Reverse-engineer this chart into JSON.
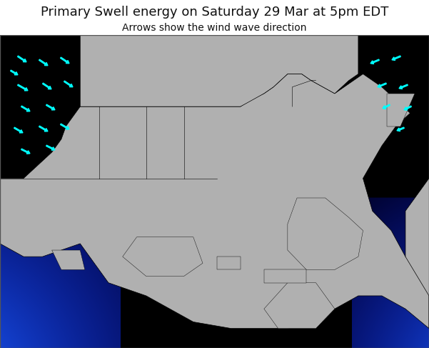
{
  "title": "Primary Swell energy on Saturday 29 Mar at 5pm EDT",
  "subtitle": "Arrows show the wind wave direction",
  "title_fontsize": 13,
  "subtitle_fontsize": 10,
  "bg_color": "#ffffff",
  "map_ocean_color": "#000000",
  "map_land_color": "#aaaaaa",
  "border_color": "#000000",
  "title_color": "#111111",
  "fig_width": 6.01,
  "fig_height": 4.87,
  "dpi": 100
}
